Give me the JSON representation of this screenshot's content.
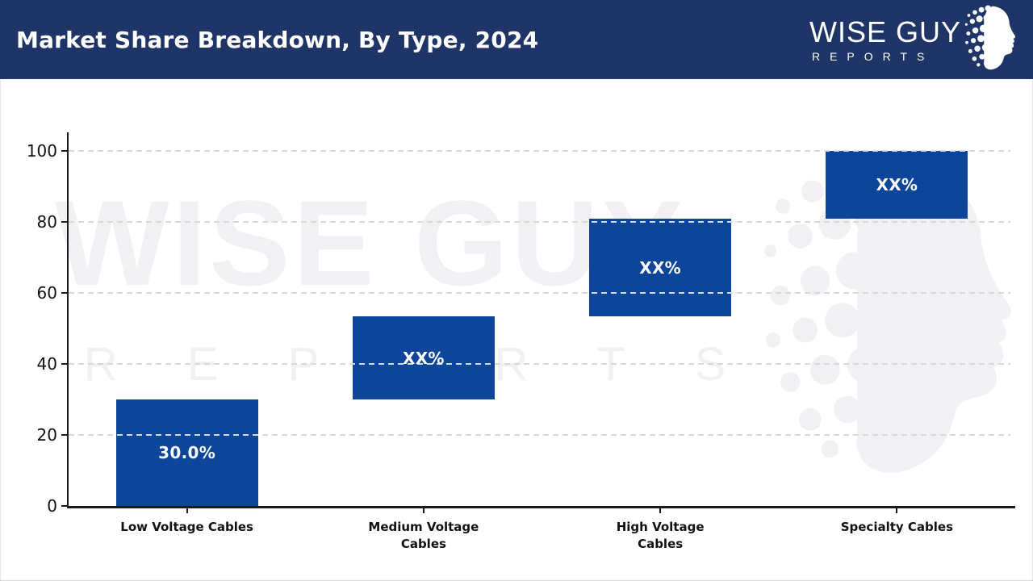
{
  "header": {
    "title": "Market Share Breakdown, By Type, 2024",
    "bg_color": "#1f3567"
  },
  "logo": {
    "brand": "WISE GUY",
    "sub": "REPORTS",
    "icon": "dotted-head-profile"
  },
  "watermark": {
    "brand": "WISE GUY",
    "sub": "REPORTS",
    "color": "#f1f1f4"
  },
  "colors": {
    "header_navy": "#1f3567",
    "bar_blue": "#0c4599",
    "grid_gray": "#d8d8d8",
    "axis_black": "#1a1a1a",
    "text_black": "#111111",
    "label_white": "#ffffff"
  },
  "chart_data": {
    "type": "bar",
    "subtype": "floating-range-waterfall",
    "title": "Market Share Breakdown, By Type, 2024",
    "xlabel": "",
    "ylabel": "",
    "ylim": [
      0,
      100
    ],
    "yticks": [
      0,
      20,
      40,
      60,
      80,
      100
    ],
    "grid": "horizontal-dashed",
    "legend": null,
    "bar_color": "#0c4599",
    "label_color": "#ffffff",
    "categories": [
      "Low Voltage Cables",
      "Medium Voltage Cables",
      "High Voltage Cables",
      "Specialty Cables"
    ],
    "segments": [
      {
        "category": "Low Voltage Cables",
        "category_lines": [
          "Low Voltage Cables"
        ],
        "start": 0,
        "end": 30,
        "value": 30.0,
        "label": "30.0%"
      },
      {
        "category": "Medium Voltage Cables",
        "category_lines": [
          "Medium Voltage",
          "Cables"
        ],
        "start": 30,
        "end": 53.3,
        "value": 23.3,
        "label": "XX%"
      },
      {
        "category": "High Voltage Cables",
        "category_lines": [
          "High Voltage",
          "Cables"
        ],
        "start": 53.3,
        "end": 81,
        "value": 27.7,
        "label": "XX%"
      },
      {
        "category": "Specialty Cables",
        "category_lines": [
          "Specialty Cables"
        ],
        "start": 81,
        "end": 100,
        "value": 19.0,
        "label": "XX%"
      }
    ]
  }
}
